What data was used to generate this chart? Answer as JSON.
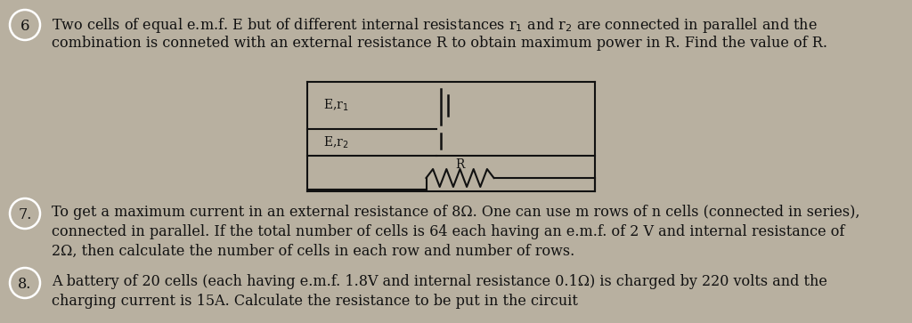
{
  "background_color": "#b8b0a0",
  "text_color": "#111111",
  "line_color": "#111111",
  "font_size_body": 11.5,
  "font_size_circuit": 10,
  "q6_number": "6",
  "q6_line1": "Two cells of equal e.m.f. E but of different internal resistances r$_1$ and r$_2$ are connected in parallel and the",
  "q6_line2": "combination is conneted with an external resistance R to obtain maximum power in R. Find the value of R.",
  "q7_number": "7.",
  "q7_line1": "To get a maximum current in an external resistance of 8Ω. One can use m rows of n cells (connected in series),",
  "q7_line2": "connected in parallel. If the total number of cells is 64 each having an e.m.f. of 2 V and internal resistance of",
  "q7_line3": "2Ω, then calculate the number of cells in each row and number of rows.",
  "q8_number": "8.",
  "q8_line1": "A battery of 20 cells (each having e.m.f. 1.8V and internal resistance 0.1Ω) is charged by 220 volts and the",
  "q8_line2": "charging current is 15A. Calculate the resistance to be put in the circuit"
}
